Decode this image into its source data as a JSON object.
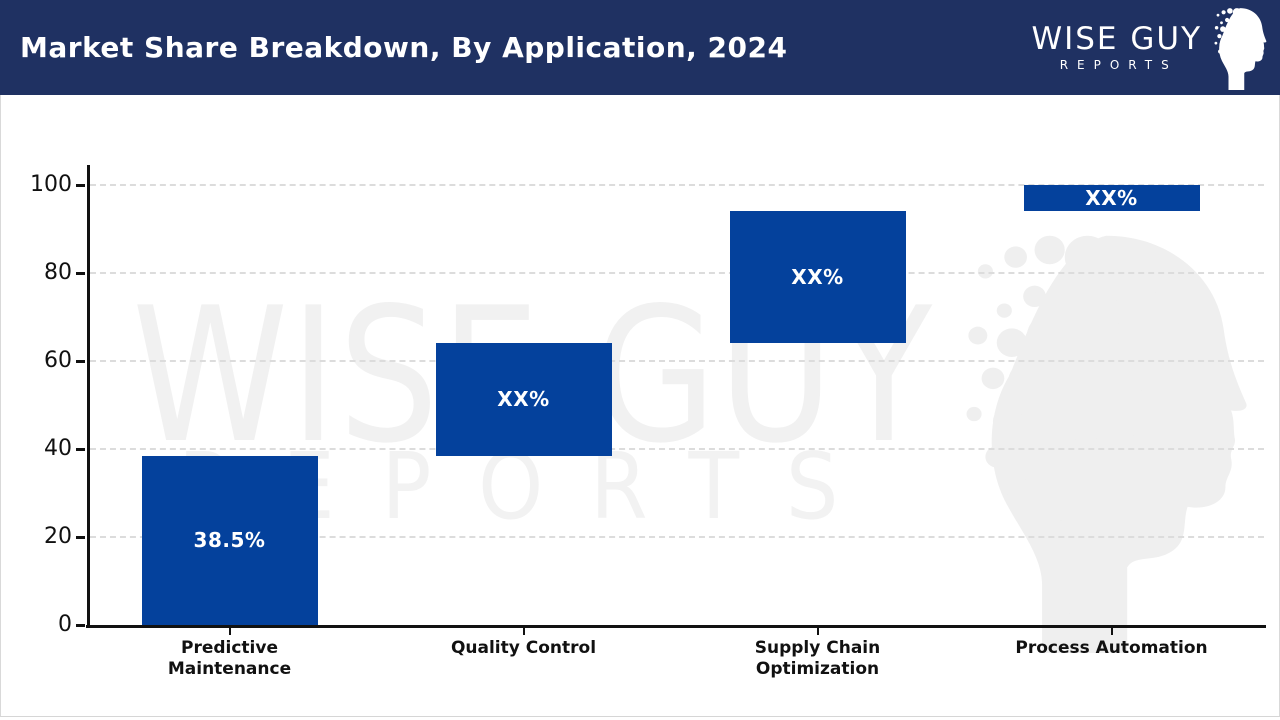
{
  "header": {
    "title": "Market Share Breakdown, By Application, 2024",
    "logo": {
      "line1": "WISE GUY",
      "line2": "REPORTS"
    }
  },
  "watermark": {
    "line1": "WISE GUY",
    "line2": "REPORTS"
  },
  "chart_data": {
    "type": "bar",
    "variant": "floating-waterfall",
    "title": "Market Share Breakdown, By Application, 2024",
    "categories": [
      "Predictive Maintenance",
      "Quality Control",
      "Supply Chain Optimization",
      "Process Automation"
    ],
    "category_lines": [
      [
        "Predictive",
        "Maintenance"
      ],
      [
        "Quality Control"
      ],
      [
        "Supply Chain",
        "Optimization"
      ],
      [
        "Process Automation"
      ]
    ],
    "segments": [
      {
        "category": "Predictive Maintenance",
        "start": 0,
        "end": 38.5,
        "label": "38.5%"
      },
      {
        "category": "Quality Control",
        "start": 38.5,
        "end": 64,
        "label": "XX%"
      },
      {
        "category": "Supply Chain Optimization",
        "start": 64,
        "end": 94,
        "label": "XX%"
      },
      {
        "category": "Process Automation",
        "start": 94,
        "end": 100,
        "label": "XX%"
      }
    ],
    "values": [
      38.5,
      25.5,
      30,
      6
    ],
    "yticks": [
      0,
      20,
      40,
      60,
      80,
      100
    ],
    "ylim": [
      0,
      105
    ],
    "xlabel": "",
    "ylabel": "",
    "grid": "horizontal-dashed",
    "legend": "none",
    "colors": {
      "bar": "#04419c",
      "bar_label": "#ffffff",
      "grid": "#dcdcdc",
      "axis": "#111111",
      "header_bg": "#1f3162",
      "watermark": "#f1f1f1",
      "border": "#d6d6d6"
    }
  }
}
